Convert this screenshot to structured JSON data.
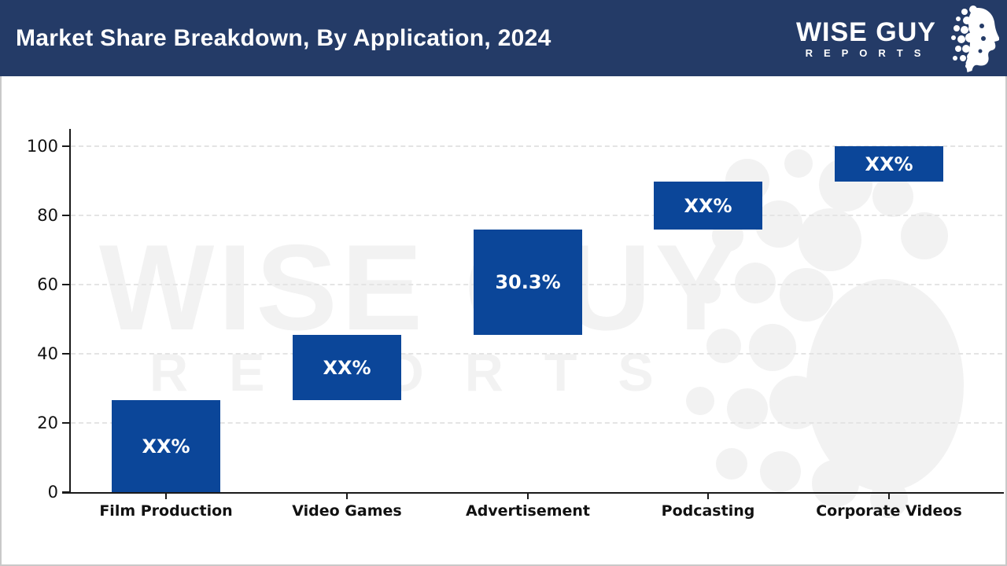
{
  "header": {
    "title": "Market Share Breakdown, By Application, 2024",
    "logo_line1": "WISE GUY",
    "logo_line2": "REPORTS"
  },
  "watermark": {
    "line1": "WISE GUY",
    "line2": "REPORTS"
  },
  "colors": {
    "header_bg": "#243b67",
    "bar": "#0b4699",
    "bar_label": "#ffffff",
    "grid": "#e4e4e4",
    "axis": "#1a1a1a",
    "tick_text": "#111111",
    "watermark": "#f2f2f2",
    "frame_border": "#c9c9c9",
    "background": "#ffffff"
  },
  "chart_data": {
    "type": "bar",
    "variant": "waterfall",
    "title": "Market Share Breakdown, By Application, 2024",
    "categories": [
      "Film Production",
      "Video Games",
      "Advertisement",
      "Podcasting",
      "Corporate Videos"
    ],
    "segments": [
      {
        "category": "Film Production",
        "start": 0,
        "end": 26.5,
        "value": 26.5,
        "label": "XX%"
      },
      {
        "category": "Video Games",
        "start": 26.5,
        "end": 45.5,
        "value": 19.0,
        "label": "XX%"
      },
      {
        "category": "Advertisement",
        "start": 45.5,
        "end": 75.8,
        "value": 30.3,
        "label": "30.3%"
      },
      {
        "category": "Podcasting",
        "start": 75.8,
        "end": 89.8,
        "value": 14.0,
        "label": "XX%"
      },
      {
        "category": "Corporate Videos",
        "start": 89.8,
        "end": 100,
        "value": 10.2,
        "label": "XX%"
      }
    ],
    "yticks": [
      0,
      20,
      40,
      60,
      80,
      100
    ],
    "ylim": [
      0,
      105
    ],
    "xlabel": "",
    "ylabel": "",
    "grid": "horizontal-dashed",
    "legend": "none",
    "bar_color": "#0b4699",
    "value_label_color": "#ffffff"
  }
}
